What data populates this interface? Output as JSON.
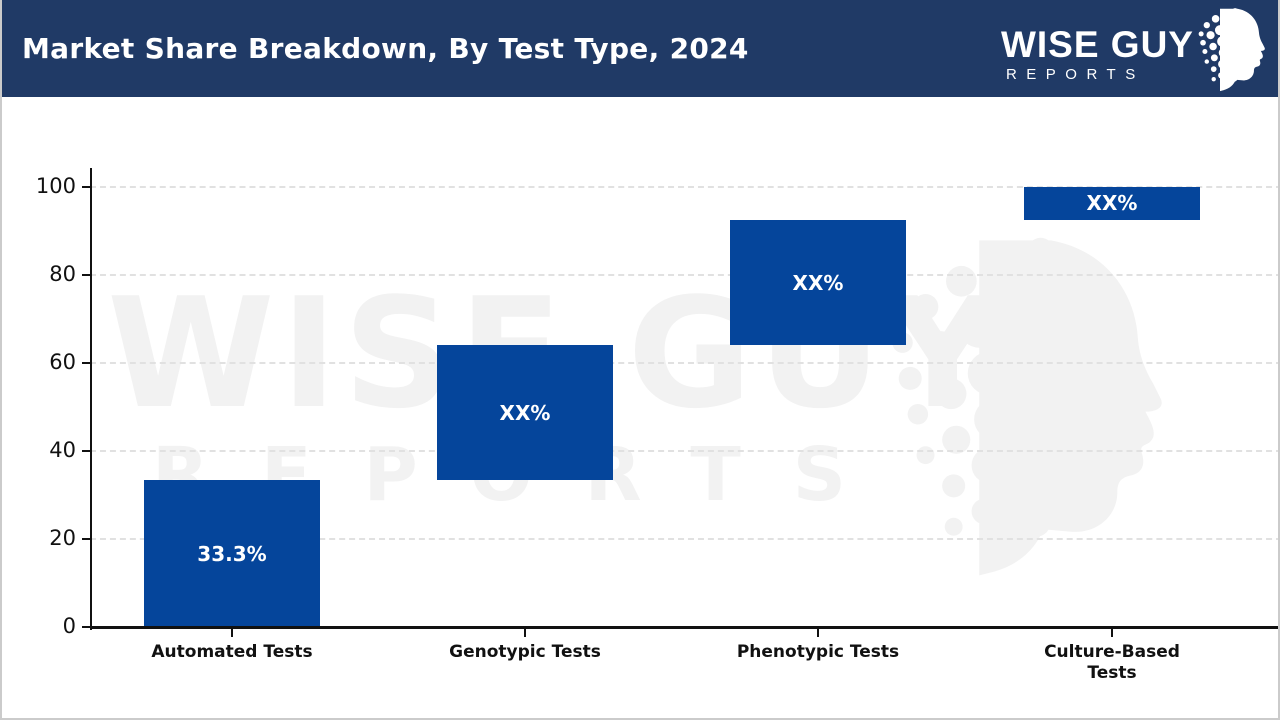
{
  "header": {
    "title": "Market Share Breakdown, By Test Type, 2024",
    "bg_color": "#203A66",
    "logo": {
      "wordmark": "WISE GUY",
      "subtext": "REPORTS"
    }
  },
  "watermark": {
    "wordmark": "WISE GUY",
    "subtext": "REPORTS"
  },
  "chart_data": {
    "type": "bar",
    "subtype": "waterfall",
    "title": "Market Share Breakdown, By Test Type, 2024",
    "categories": [
      "Automated Tests",
      "Genotypic Tests",
      "Phenotypic Tests",
      "Culture-Based Tests"
    ],
    "segments": [
      {
        "category": "Automated Tests",
        "start": 0,
        "end": 33.3,
        "label": "33.3%"
      },
      {
        "category": "Genotypic Tests",
        "start": 33.3,
        "end": 64,
        "label": "XX%"
      },
      {
        "category": "Phenotypic Tests",
        "start": 64,
        "end": 92.3,
        "label": "XX%"
      },
      {
        "category": "Culture-Based Tests",
        "start": 92.3,
        "end": 100,
        "label": "XX%"
      }
    ],
    "y_ticks": [
      0,
      20,
      40,
      60,
      80,
      100
    ],
    "ylim": [
      0,
      100
    ],
    "xlabel": "",
    "ylabel": "",
    "bar_color": "#05459B",
    "bar_label_color": "#FFFFFF",
    "grid": {
      "axis": "y",
      "style": "dashed",
      "color": "#E1E1E1"
    }
  }
}
